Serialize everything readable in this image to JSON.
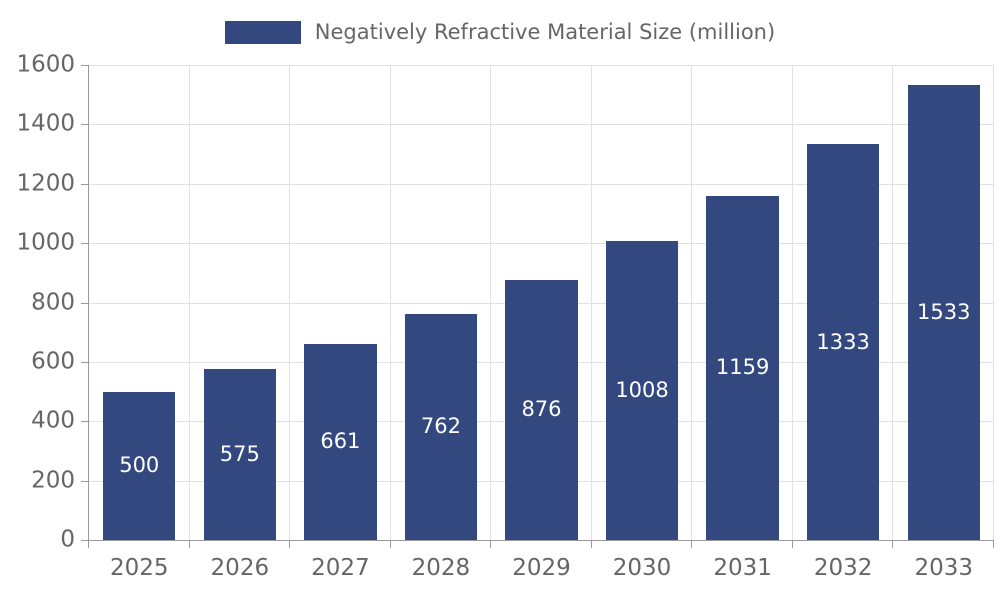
{
  "chart_data": {
    "type": "bar",
    "title": "Negatively Refractive Material Size (million)",
    "legend": "Negatively Refractive Material Size (million)",
    "categories": [
      "2025",
      "2026",
      "2027",
      "2028",
      "2029",
      "2030",
      "2031",
      "2032",
      "2033"
    ],
    "values": [
      500,
      575,
      661,
      762,
      876,
      1008,
      1159,
      1333,
      1533
    ],
    "xlabel": "",
    "ylabel": "",
    "ylim": [
      0,
      1600
    ],
    "yticks": [
      0,
      200,
      400,
      600,
      800,
      1000,
      1200,
      1400,
      1600
    ],
    "grid": "on",
    "legend_position": "top-center",
    "bar_color": "#344880",
    "value_label_color": "#ffffff",
    "gridline_color": "#e1e1e1",
    "axis_color": "#999999",
    "tick_label_color": "#666666",
    "background_color": "#ffffff"
  }
}
